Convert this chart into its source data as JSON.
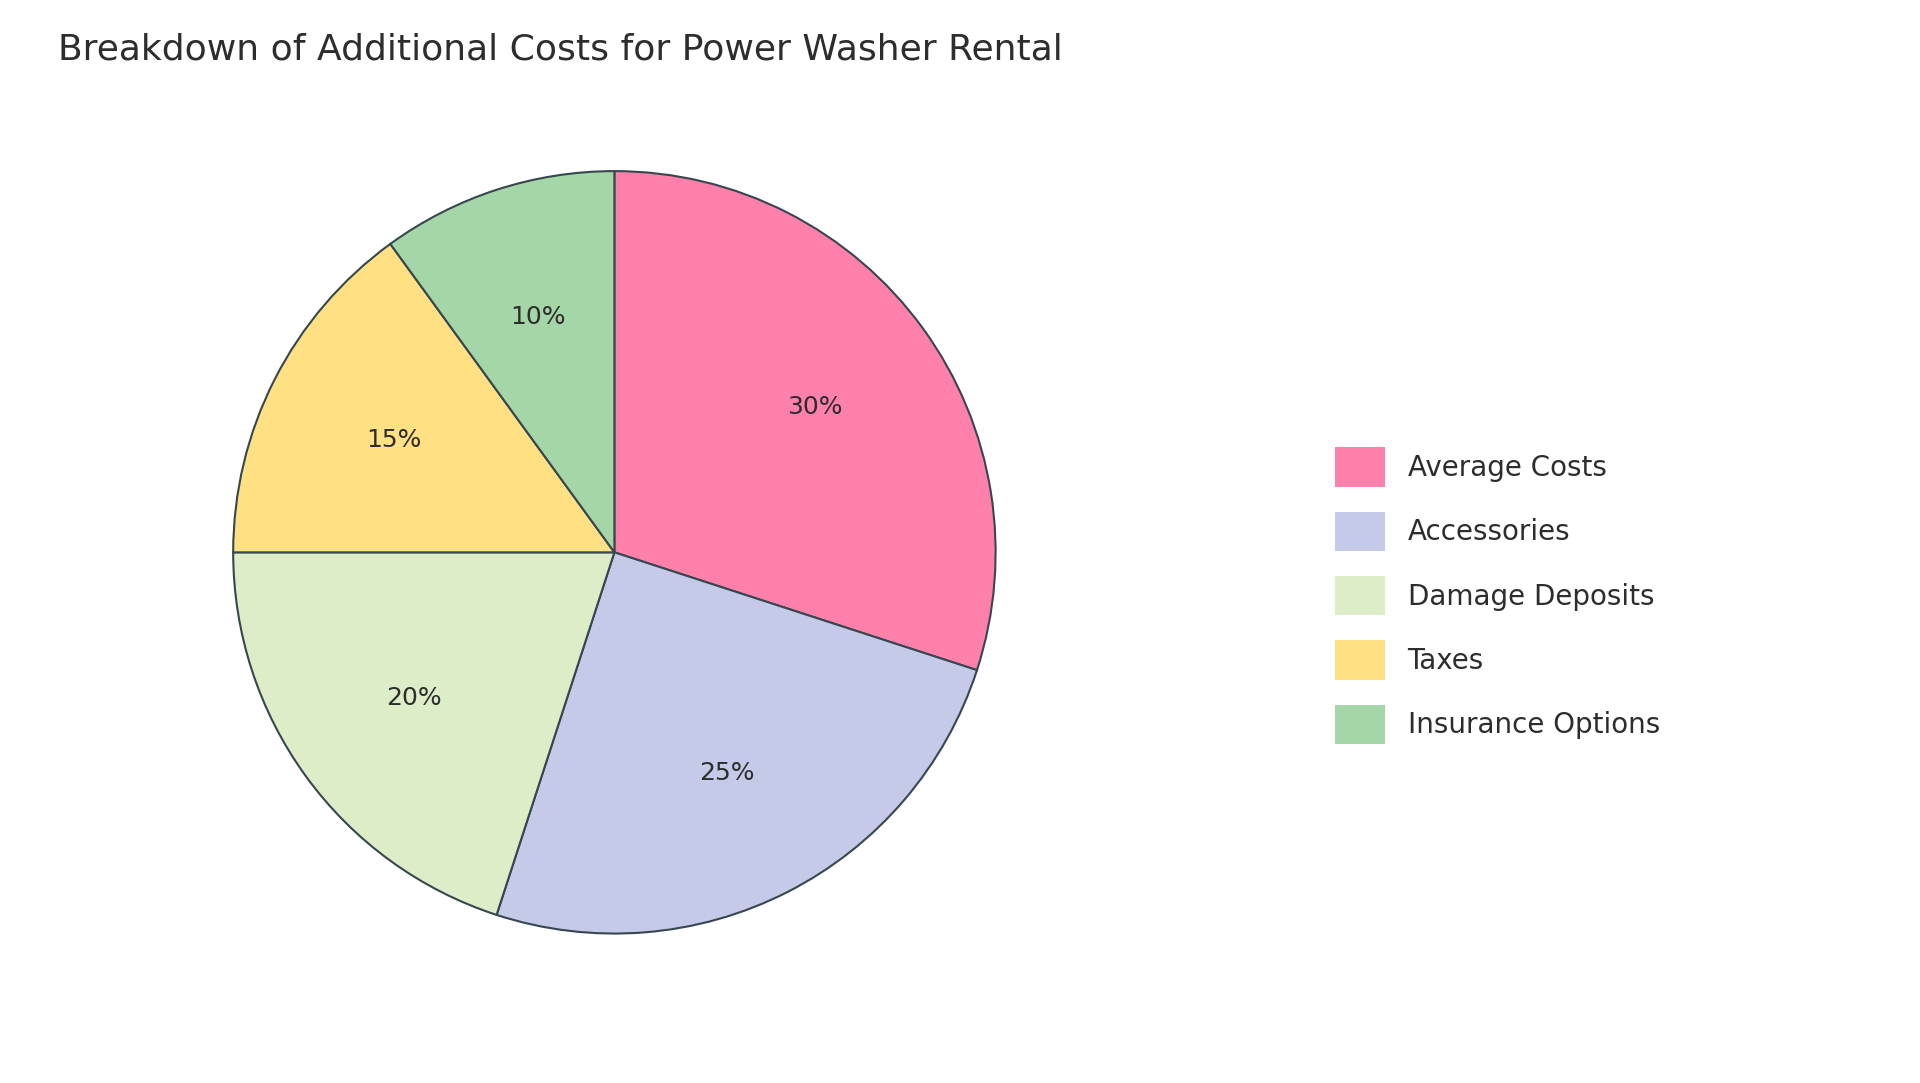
{
  "title": "Breakdown of Additional Costs for Power Washer Rental",
  "title_fontsize": 26,
  "title_color": "#2d2d2d",
  "labels": [
    "Average Costs",
    "Accessories",
    "Damage Deposits",
    "Taxes",
    "Insurance Options"
  ],
  "sizes": [
    30,
    25,
    20,
    15,
    10
  ],
  "colors": [
    "#FF80AB",
    "#C5CAE9",
    "#DCEDC8",
    "#FFE082",
    "#A5D6A7"
  ],
  "edge_color": "#37474F",
  "edge_width": 1.5,
  "pct_fontsize": 18,
  "pct_color": "#2d2d2d",
  "legend_fontsize": 20,
  "startangle": 90,
  "background_color": "#ffffff"
}
